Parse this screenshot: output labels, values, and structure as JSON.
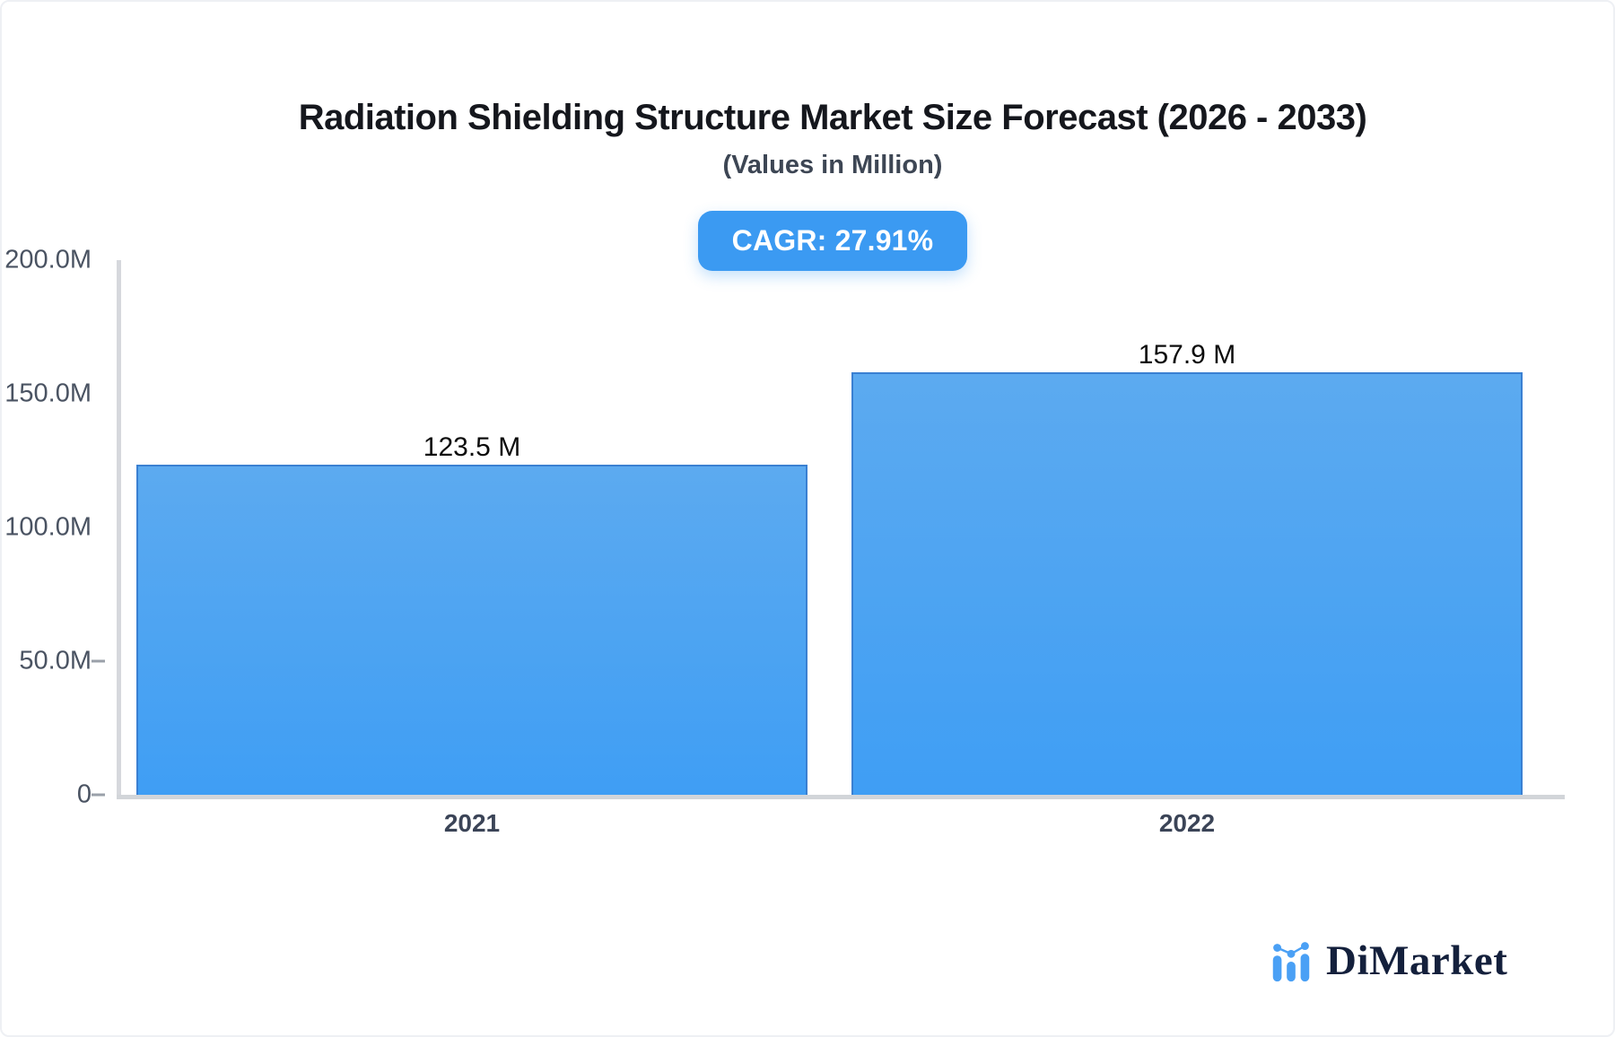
{
  "header": {
    "title": "Radiation Shielding Structure Market Size Forecast (2026 - 2033)",
    "subtitle": "(Values in Million)",
    "cagr_badge": "CAGR: 27.91%"
  },
  "chart_data": {
    "type": "bar",
    "title": "Radiation Shielding Structure Market Size Forecast (2026 - 2033)",
    "subtitle": "(Values in Million)",
    "unit": "Million",
    "categories": [
      "2021",
      "2022"
    ],
    "values": [
      123.5,
      157.9
    ],
    "value_labels": [
      "123.5 M",
      "157.9 M"
    ],
    "cagr_percent": 27.91,
    "xlabel": "",
    "ylabel": "",
    "ylim": [
      0,
      200
    ],
    "y_ticks": [
      {
        "value": 200,
        "label": "200.0M"
      },
      {
        "value": 150,
        "label": "150.0M"
      },
      {
        "value": 100,
        "label": "100.0M"
      },
      {
        "value": 50,
        "label": "50.0M"
      },
      {
        "value": 0,
        "label": "0"
      }
    ],
    "grid": false,
    "legend_position": "none",
    "bar_fill_top": "#5caaf0",
    "bar_fill_bottom": "#3f9ef4",
    "bar_border_color": "#3a80d2"
  },
  "branding": {
    "logo_text": "DiMarket",
    "logo_icon": "bar-chart-icon",
    "logo_icon_color": "#4aa0f5",
    "logo_text_color": "#14203c"
  },
  "colors": {
    "accent_blue": "#3b9af2",
    "axis_line": "#d5d8dc",
    "title_text": "#15171d",
    "subtitle_text": "#3d4654",
    "axis_label_text": "#4a5362"
  }
}
